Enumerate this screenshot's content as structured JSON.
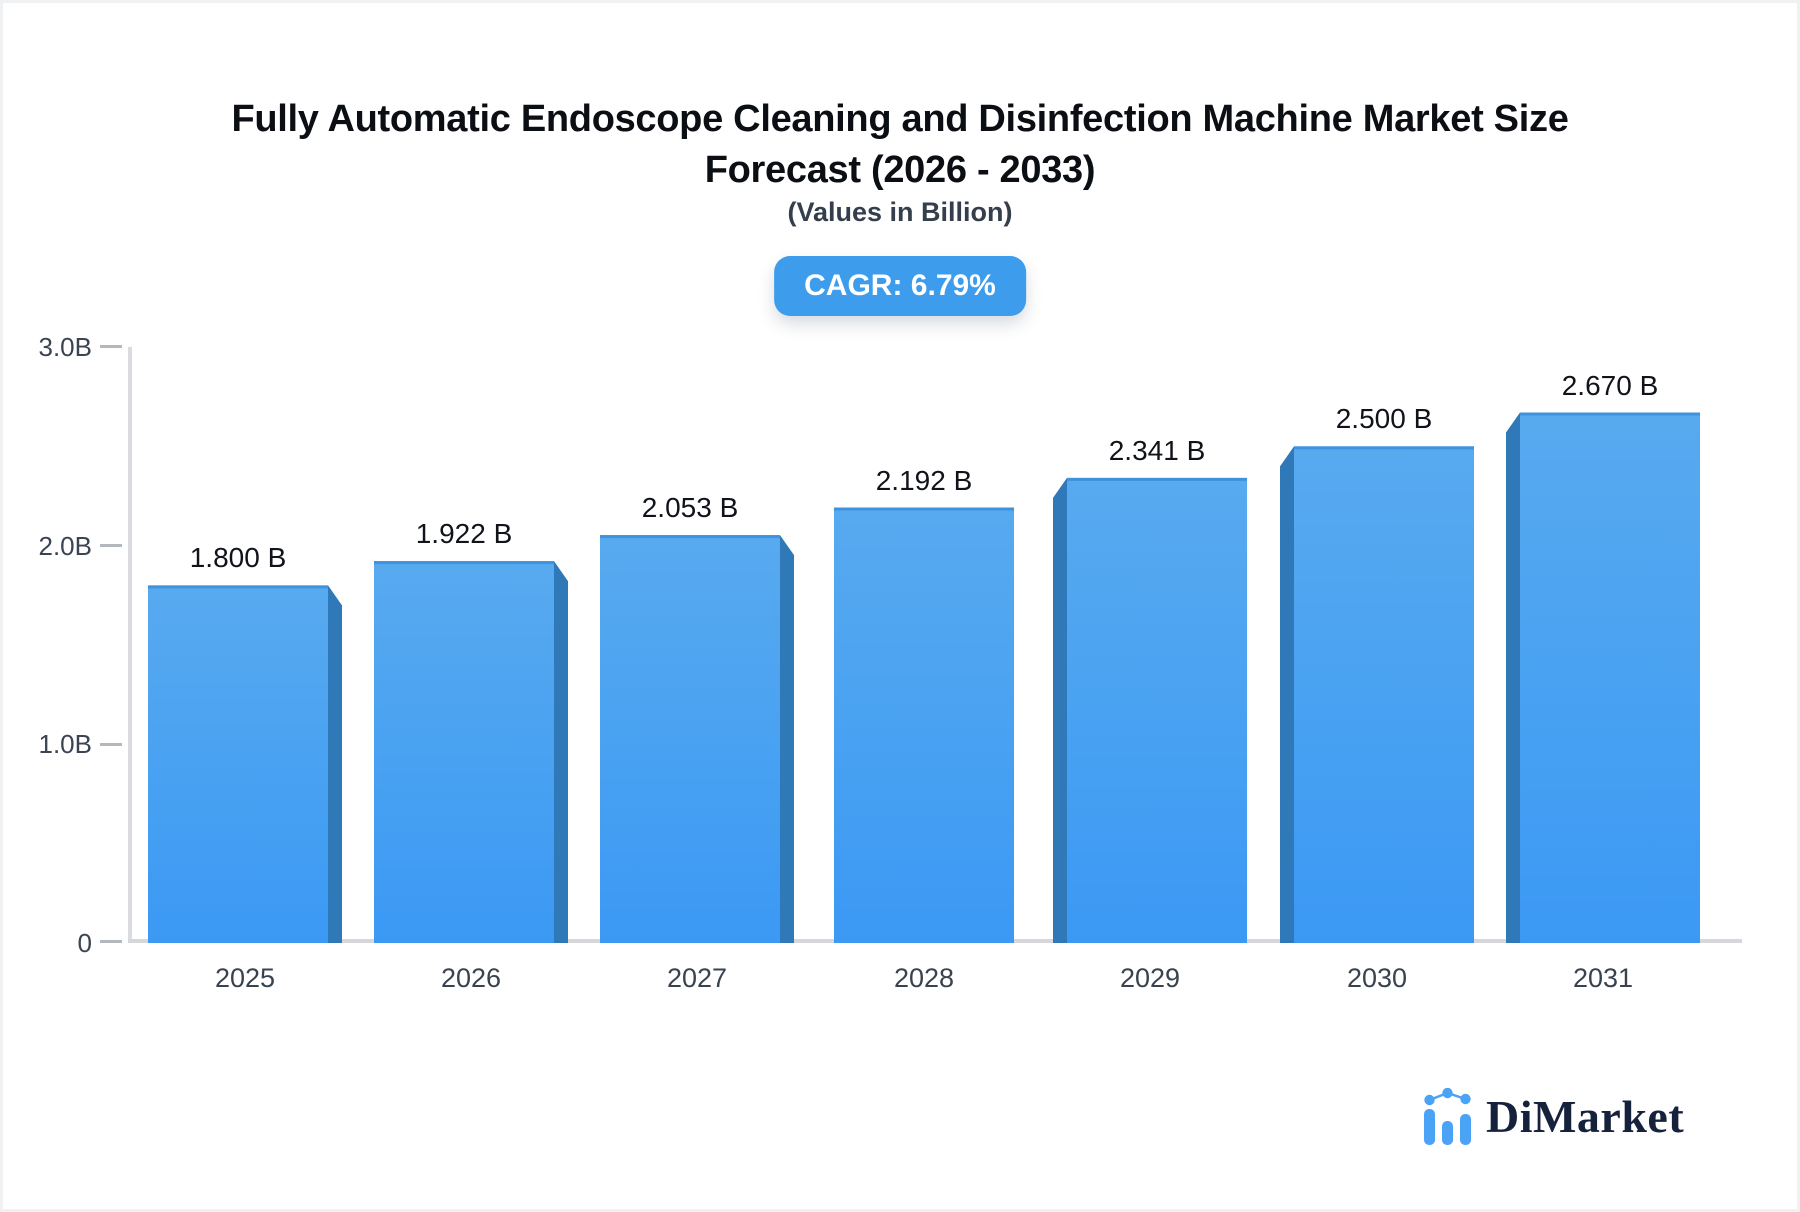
{
  "header": {
    "title_line1": "Fully Automatic Endoscope Cleaning and Disinfection Machine Market Size",
    "title_line2": "Forecast (2026 - 2033)",
    "subtitle": "(Values in Billion)",
    "badge": "CAGR: 6.79%"
  },
  "chart_data": {
    "type": "bar",
    "title": "Fully Automatic Endoscope Cleaning and Disinfection Machine Market Size Forecast (2026 - 2033)",
    "subtitle": "(Values in Billion)",
    "cagr": "6.79%",
    "categories": [
      "2025",
      "2026",
      "2027",
      "2028",
      "2029",
      "2030",
      "2031"
    ],
    "values": [
      1.8,
      1.922,
      2.053,
      2.192,
      2.341,
      2.5,
      2.67
    ],
    "value_labels": [
      "1.800 B",
      "1.922 B",
      "2.053 B",
      "2.192 B",
      "2.341 B",
      "2.500 B",
      "2.670 B"
    ],
    "unit": "Billion",
    "yticks": [
      "3.0B",
      "2.0B",
      "1.0B",
      "0"
    ],
    "ylim": [
      0,
      3.0
    ],
    "grid": false,
    "legend": false,
    "bar_style": "3d"
  },
  "logo": {
    "text": "DiMarket"
  },
  "colors": {
    "bar_face_top": "#58AAEF",
    "bar_face_bottom": "#3B99F4",
    "bar_side": "#2F79B8",
    "bar_top_edge": "#3E92DE",
    "badge_bg": "#3D9CEC",
    "badge_text": "#FFFFFF",
    "axis_line": "#D9DBDF",
    "tick_dash": "#B3B8BF",
    "title_text": "#0B0E13",
    "subtitle_text": "#353E4C",
    "axis_label": "#3B4452",
    "value_label": "#10141A",
    "logo_text": "#16213C",
    "logo_icon": "#4BA3F5"
  }
}
